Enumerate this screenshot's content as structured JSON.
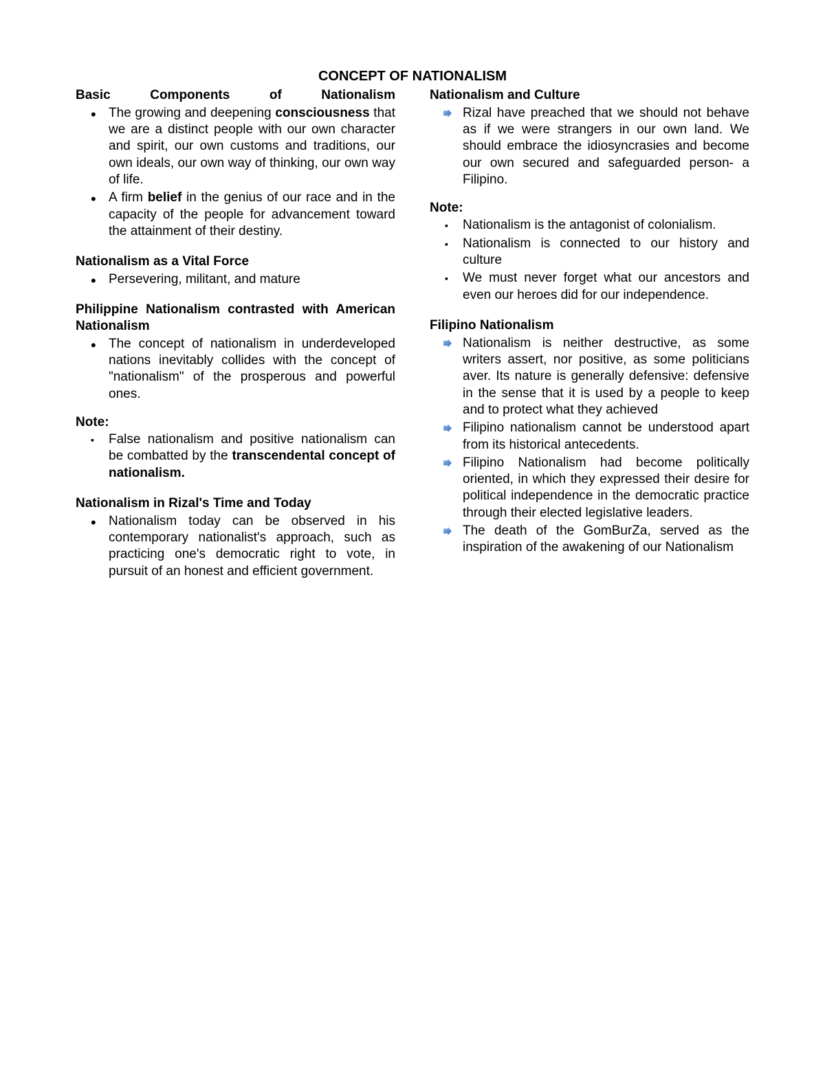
{
  "title": "CONCEPT OF NATIONALISM",
  "left": {
    "s1": {
      "heading": "Basic Components of Nationalism",
      "items": [
        {
          "pre": "The growing and deepening ",
          "bold": "consciousness",
          "post": " that we are a distinct people with our own character and spirit, our own customs and traditions, our own ideals, our own way of thinking, our own way of life."
        },
        {
          "pre": "A firm ",
          "bold": "belief",
          "post": " in the genius of our race and in the capacity of the people for advancement toward the attainment of their destiny."
        }
      ]
    },
    "s2": {
      "heading": "Nationalism as a Vital Force",
      "items": [
        "Persevering, militant, and mature"
      ]
    },
    "s3": {
      "heading": "Philippine Nationalism contrasted with American Nationalism",
      "items": [
        "The concept of nationalism in underdeveloped nations inevitably collides with the concept of \"nationalism\" of the prosperous and powerful ones."
      ]
    },
    "note1": {
      "label": "Note:",
      "items": [
        {
          "pre": "False nationalism and positive nationalism can be combatted by the ",
          "bold": "transcendental concept of nationalism.",
          "post": ""
        }
      ]
    },
    "s4": {
      "heading": "Nationalism in Rizal's Time and Today",
      "items": [
        "Nationalism today can be observed in his contemporary nationalist's approach, such as practicing one's democratic right to vote, in pursuit of an honest and efficient government."
      ]
    }
  },
  "right": {
    "s1": {
      "heading": "Nationalism and Culture",
      "items": [
        "Rizal have preached that we should not behave as if we were strangers in our own land. We should embrace the idiosyncrasies and become our own secured and safeguarded person- a Filipino."
      ]
    },
    "note1": {
      "label": "Note:",
      "items": [
        "Nationalism is the antagonist of colonialism.",
        "Nationalism is connected to our history and culture",
        "We must never forget what our ancestors and even our heroes did for our independence."
      ]
    },
    "s2": {
      "heading": "Filipino Nationalism",
      "items": [
        "Nationalism is neither destructive, as some writers assert, nor positive, as some politicians aver. Its nature is generally defensive: defensive in the sense that it is used by a people to keep and to protect what they achieved",
        "Filipino nationalism cannot be understood apart from its historical antecedents.",
        "Filipino Nationalism had become politically oriented, in which they expressed their desire for political independence in the democratic practice through their elected legislative leaders.",
        "The death of the GomBurZa, served as the inspiration of the awakening of our Nationalism"
      ]
    }
  }
}
